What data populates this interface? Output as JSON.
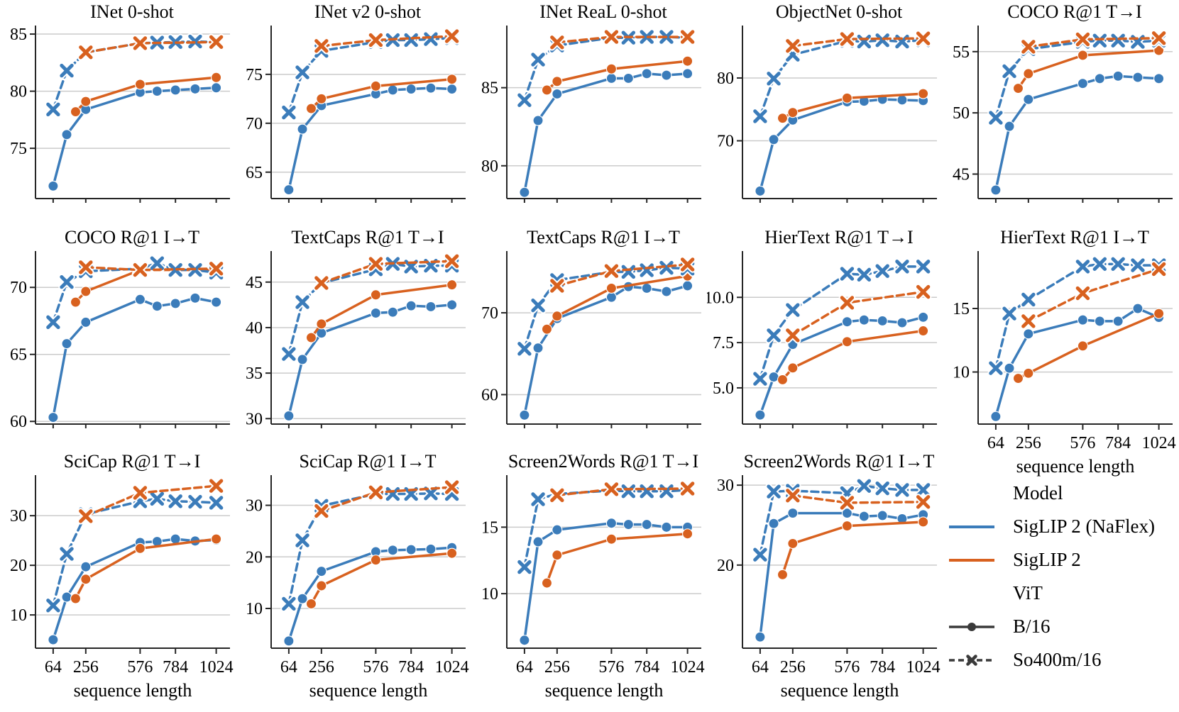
{
  "figure_title": "",
  "xlabel": "sequence length",
  "xtick_labels": [
    "64",
    "256",
    "576",
    "784",
    "1024"
  ],
  "xtick_values": [
    64,
    256,
    576,
    784,
    1024
  ],
  "colors": {
    "naflex_blue": "#3b7cba",
    "siglip2_orange": "#d8611f",
    "vit_dark": "#3a3a3a",
    "gridline": "#cbcbcb",
    "axis": "#262626"
  },
  "legend": {
    "model_header": "Model",
    "model_items": [
      {
        "label": "SigLIP 2 (NaFlex)",
        "color": "#3b7cba"
      },
      {
        "label": "SigLIP 2",
        "color": "#d8611f"
      }
    ],
    "vit_header": "ViT",
    "vit_items": [
      {
        "label": "B/16",
        "dash": false,
        "marker": "circle"
      },
      {
        "label": "So400m/16",
        "dash": true,
        "marker": "x"
      }
    ]
  },
  "chart_data": {
    "type": "line",
    "x_axis": {
      "label": "sequence length",
      "ticks": [
        64,
        256,
        576,
        784,
        1024
      ],
      "range": [
        -40,
        1105
      ]
    },
    "series_defs": [
      {
        "id": "naflex_b16",
        "name": "SigLIP 2 (NaFlex) B/16",
        "color": "#3b7cba",
        "dash": false,
        "marker": "circle",
        "x": [
          64,
          144,
          256,
          576,
          676,
          784,
          900,
          1024
        ]
      },
      {
        "id": "siglip2_b16",
        "name": "SigLIP 2 B/16",
        "color": "#d8611f",
        "dash": false,
        "marker": "circle",
        "x": [
          196,
          256,
          576,
          1024
        ]
      },
      {
        "id": "naflex_so400m",
        "name": "SigLIP 2 (NaFlex) So400m/16",
        "color": "#3b7cba",
        "dash": true,
        "marker": "x",
        "x": [
          64,
          144,
          256,
          576,
          676,
          784,
          900,
          1024
        ]
      },
      {
        "id": "siglip2_so400m",
        "name": "SigLIP 2 So400m/16",
        "color": "#d8611f",
        "dash": true,
        "marker": "x",
        "x": [
          256,
          576,
          1024
        ]
      }
    ],
    "plots": [
      {
        "title": "INet 0-shot",
        "row": 1,
        "col": 1,
        "show_x": false,
        "ylim": [
          70.6,
          85.5
        ],
        "yticks": [
          75,
          80,
          85
        ],
        "ytick_labels": [
          "75",
          "80",
          "85"
        ],
        "values": {
          "naflex_b16": [
            71.7,
            76.2,
            78.4,
            79.9,
            80.0,
            80.1,
            80.2,
            80.3
          ],
          "siglip2_b16": [
            78.2,
            79.1,
            80.6,
            81.2
          ],
          "naflex_so400m": [
            78.4,
            81.8,
            83.4,
            84.2,
            84.25,
            84.3,
            84.35,
            84.3
          ],
          "siglip2_so400m": [
            83.4,
            84.2,
            84.3
          ]
        }
      },
      {
        "title": "INet v2 0-shot",
        "row": 1,
        "col": 2,
        "show_x": false,
        "ylim": [
          62.3,
          79.7
        ],
        "yticks": [
          65,
          70,
          75
        ],
        "ytick_labels": [
          "65",
          "70",
          "75"
        ],
        "values": {
          "naflex_b16": [
            63.2,
            69.4,
            71.8,
            73.0,
            73.4,
            73.5,
            73.6,
            73.5
          ],
          "siglip2_b16": [
            71.5,
            72.5,
            73.8,
            74.5
          ],
          "naflex_so400m": [
            71.1,
            75.2,
            77.4,
            78.3,
            78.5,
            78.5,
            78.6,
            78.7
          ],
          "siglip2_so400m": [
            77.9,
            78.5,
            78.9
          ]
        }
      },
      {
        "title": "INet ReaL 0-shot",
        "row": 1,
        "col": 3,
        "show_x": false,
        "ylim": [
          77.9,
          88.8
        ],
        "yticks": [
          80,
          85
        ],
        "ytick_labels": [
          "80",
          "85"
        ],
        "values": {
          "naflex_b16": [
            78.3,
            82.9,
            84.6,
            85.6,
            85.6,
            85.9,
            85.8,
            85.9
          ],
          "siglip2_b16": [
            84.85,
            85.4,
            86.2,
            86.7
          ],
          "naflex_so400m": [
            84.2,
            86.8,
            87.7,
            88.2,
            88.2,
            88.25,
            88.25,
            88.2
          ],
          "siglip2_so400m": [
            87.9,
            88.25,
            88.25
          ]
        }
      },
      {
        "title": "ObjectNet 0-shot",
        "row": 1,
        "col": 4,
        "show_x": false,
        "ylim": [
          60.8,
          87.9
        ],
        "yticks": [
          70,
          80
        ],
        "ytick_labels": [
          "70",
          "80"
        ],
        "values": {
          "naflex_b16": [
            62.0,
            70.2,
            73.3,
            76.2,
            76.3,
            76.6,
            76.5,
            76.4
          ],
          "siglip2_b16": [
            73.6,
            74.5,
            76.8,
            77.5
          ],
          "naflex_so400m": [
            73.9,
            79.9,
            83.7,
            85.9,
            85.8,
            86.0,
            85.8,
            86.0
          ],
          "siglip2_so400m": [
            85.1,
            86.2,
            86.3
          ]
        }
      },
      {
        "title": "COCO R@1 T→I",
        "row": 1,
        "col": 5,
        "show_x": false,
        "ylim": [
          43.0,
          56.9
        ],
        "yticks": [
          45,
          50,
          55
        ],
        "ytick_labels": [
          "45",
          "50",
          "55"
        ],
        "values": {
          "naflex_b16": [
            43.7,
            48.9,
            51.1,
            52.4,
            52.8,
            53.0,
            52.9,
            52.8
          ],
          "siglip2_b16": [
            52.0,
            53.2,
            54.7,
            55.1
          ],
          "naflex_so400m": [
            49.6,
            53.4,
            55.2,
            55.8,
            55.9,
            55.9,
            55.8,
            55.9
          ],
          "siglip2_so400m": [
            55.4,
            56.0,
            56.1
          ]
        }
      },
      {
        "title": "COCO R@1 I→T",
        "row": 2,
        "col": 1,
        "show_x": false,
        "ylim": [
          59.8,
          72.5
        ],
        "yticks": [
          60,
          65,
          70
        ],
        "ytick_labels": [
          "60",
          "65",
          "70"
        ],
        "values": {
          "naflex_b16": [
            60.3,
            65.8,
            67.4,
            69.1,
            68.6,
            68.8,
            69.2,
            68.9
          ],
          "siglip2_b16": [
            68.9,
            69.7,
            71.3,
            71.3
          ],
          "naflex_so400m": [
            67.4,
            70.4,
            71.2,
            71.4,
            71.8,
            71.3,
            71.3,
            71.1
          ],
          "siglip2_so400m": [
            71.5,
            71.3,
            71.4
          ]
        }
      },
      {
        "title": "TextCaps R@1 T→I",
        "row": 2,
        "col": 2,
        "show_x": false,
        "ylim": [
          29.4,
          48.1
        ],
        "yticks": [
          30,
          35,
          40,
          45
        ],
        "ytick_labels": [
          "30",
          "35",
          "40",
          "45"
        ],
        "values": {
          "naflex_b16": [
            30.3,
            36.5,
            39.4,
            41.6,
            41.7,
            42.4,
            42.3,
            42.5
          ],
          "siglip2_b16": [
            38.9,
            40.4,
            43.6,
            44.7
          ],
          "naflex_so400m": [
            37.1,
            42.8,
            44.9,
            46.4,
            47.0,
            46.7,
            46.8,
            46.8
          ],
          "siglip2_so400m": [
            44.9,
            47.0,
            47.3
          ]
        }
      },
      {
        "title": "TextCaps R@1 I→T",
        "row": 2,
        "col": 3,
        "show_x": false,
        "ylim": [
          56.4,
          77.2
        ],
        "yticks": [
          60,
          70
        ],
        "ytick_labels": [
          "60",
          "70"
        ],
        "values": {
          "naflex_b16": [
            57.5,
            65.7,
            69.3,
            71.9,
            73.2,
            73.0,
            72.6,
            73.3
          ],
          "siglip2_b16": [
            68.0,
            69.6,
            73.0,
            74.5
          ],
          "naflex_so400m": [
            65.6,
            70.9,
            74.0,
            75.0,
            75.0,
            75.2,
            75.5,
            75.4
          ],
          "siglip2_so400m": [
            73.3,
            75.1,
            75.9
          ]
        }
      },
      {
        "title": "HierText R@1 T→I",
        "row": 2,
        "col": 4,
        "show_x": false,
        "ylim": [
          3.0,
          12.4
        ],
        "yticks": [
          5,
          7.5,
          10
        ],
        "ytick_labels": [
          "5.0",
          "7.5",
          "10.0"
        ],
        "values": {
          "naflex_b16": [
            3.5,
            5.6,
            7.4,
            8.65,
            8.75,
            8.7,
            8.6,
            8.9
          ],
          "siglip2_b16": [
            5.45,
            6.1,
            7.55,
            8.15
          ],
          "naflex_so400m": [
            5.5,
            7.9,
            9.3,
            11.3,
            11.25,
            11.45,
            11.7,
            11.7
          ],
          "siglip2_so400m": [
            7.9,
            9.7,
            10.3
          ]
        }
      },
      {
        "title": "HierText R@1 I→T",
        "row": 2,
        "col": 5,
        "show_x": true,
        "ylim": [
          5.9,
          19.3
        ],
        "yticks": [
          10,
          15
        ],
        "ytick_labels": [
          "10",
          "15"
        ],
        "values": {
          "naflex_b16": [
            6.5,
            10.3,
            13.0,
            14.1,
            14.0,
            14.0,
            15.0,
            14.3
          ],
          "siglip2_b16": [
            9.5,
            9.9,
            12.05,
            14.6
          ],
          "naflex_so400m": [
            10.3,
            14.6,
            15.7,
            18.3,
            18.5,
            18.5,
            18.4,
            18.4
          ],
          "siglip2_so400m": [
            14.0,
            16.2,
            18.1
          ]
        }
      },
      {
        "title": "SciCap R@1 T→I",
        "row": 3,
        "col": 1,
        "show_x": true,
        "ylim": [
          3.3,
          37.6
        ],
        "yticks": [
          10,
          20,
          30
        ],
        "ytick_labels": [
          "10",
          "20",
          "30"
        ],
        "values": {
          "naflex_b16": [
            5.0,
            13.6,
            19.7,
            24.6,
            24.8,
            25.3,
            24.9,
            25.1
          ],
          "siglip2_b16": [
            13.3,
            17.2,
            23.4,
            25.3
          ],
          "naflex_so400m": [
            11.9,
            22.3,
            30.3,
            32.9,
            33.4,
            32.9,
            32.8,
            32.6
          ],
          "siglip2_so400m": [
            29.9,
            34.6,
            36.0
          ]
        }
      },
      {
        "title": "SciCap R@1 I→T",
        "row": 3,
        "col": 2,
        "show_x": true,
        "ylim": [
          2.3,
          35.3
        ],
        "yticks": [
          10,
          20,
          30
        ],
        "ytick_labels": [
          "10",
          "20",
          "30"
        ],
        "values": {
          "naflex_b16": [
            3.7,
            11.9,
            17.2,
            21.0,
            21.3,
            21.4,
            21.5,
            21.8
          ],
          "siglip2_b16": [
            10.9,
            14.4,
            19.4,
            20.7
          ],
          "naflex_so400m": [
            10.9,
            23.2,
            29.9,
            32.2,
            32.2,
            32.2,
            32.3,
            32.2
          ],
          "siglip2_so400m": [
            28.9,
            32.5,
            33.5
          ]
        }
      },
      {
        "title": "Screen2Words R@1 T→I",
        "row": 3,
        "col": 3,
        "show_x": true,
        "ylim": [
          5.9,
          18.7
        ],
        "yticks": [
          10,
          15
        ],
        "ytick_labels": [
          "10",
          "15"
        ],
        "values": {
          "naflex_b16": [
            6.5,
            13.9,
            14.8,
            15.3,
            15.2,
            15.2,
            15.0,
            15.0
          ],
          "siglip2_b16": [
            10.8,
            12.9,
            14.1,
            14.5
          ],
          "naflex_so400m": [
            12.0,
            17.1,
            17.5,
            17.75,
            17.7,
            17.7,
            17.7,
            17.8
          ],
          "siglip2_so400m": [
            17.4,
            17.85,
            17.9
          ]
        }
      },
      {
        "title": "Screen2Words R@1 I→T",
        "row": 3,
        "col": 4,
        "show_x": true,
        "ylim": [
          9.6,
          30.9
        ],
        "yticks": [
          20,
          30
        ],
        "ytick_labels": [
          "20",
          "30"
        ],
        "values": {
          "naflex_b16": [
            11.0,
            25.2,
            26.5,
            26.5,
            26.1,
            26.2,
            25.8,
            26.3
          ],
          "siglip2_b16": [
            18.8,
            22.7,
            24.9,
            25.4
          ],
          "naflex_so400m": [
            21.3,
            29.2,
            29.3,
            29.0,
            29.9,
            29.6,
            29.4,
            29.4
          ],
          "siglip2_so400m": [
            28.7,
            27.8,
            27.9
          ]
        }
      }
    ]
  }
}
